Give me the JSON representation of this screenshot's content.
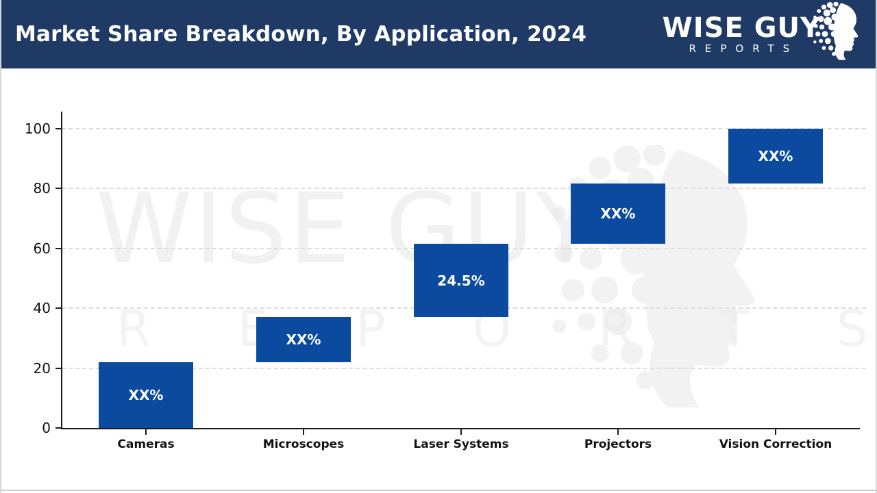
{
  "header": {
    "title": "Market Share Breakdown, By Application, 2024",
    "bg_color": "#203a66",
    "logo": {
      "line1": "WISE GUY",
      "line2": "REPORTS"
    }
  },
  "watermark": {
    "line1": "WISE GUY",
    "line2": "R E P O R T S"
  },
  "chart_data": {
    "type": "bar",
    "subtype": "floating-waterfall",
    "title": "Market Share Breakdown, By Application, 2024",
    "categories": [
      "Cameras",
      "Microscopes",
      "Laser Systems",
      "Projectors",
      "Vision Correction"
    ],
    "segments": [
      {
        "category": "Cameras",
        "start": 0,
        "end": 22,
        "value": 22,
        "label": "XX%"
      },
      {
        "category": "Microscopes",
        "start": 22,
        "end": 37,
        "value": 15,
        "label": "XX%"
      },
      {
        "category": "Laser Systems",
        "start": 37,
        "end": 61.5,
        "value": 24.5,
        "label": "24.5%"
      },
      {
        "category": "Projectors",
        "start": 61.5,
        "end": 81.5,
        "value": 20,
        "label": "XX%"
      },
      {
        "category": "Vision Correction",
        "start": 81.5,
        "end": 100,
        "value": 18.5,
        "label": "XX%"
      }
    ],
    "xlabel": "",
    "ylabel": "",
    "ylim": [
      0,
      100
    ],
    "yticks": [
      0,
      20,
      40,
      60,
      80,
      100
    ],
    "bar_color": "#0b4a9e",
    "grid": true,
    "gridline_style": "dashed",
    "legend": false
  }
}
